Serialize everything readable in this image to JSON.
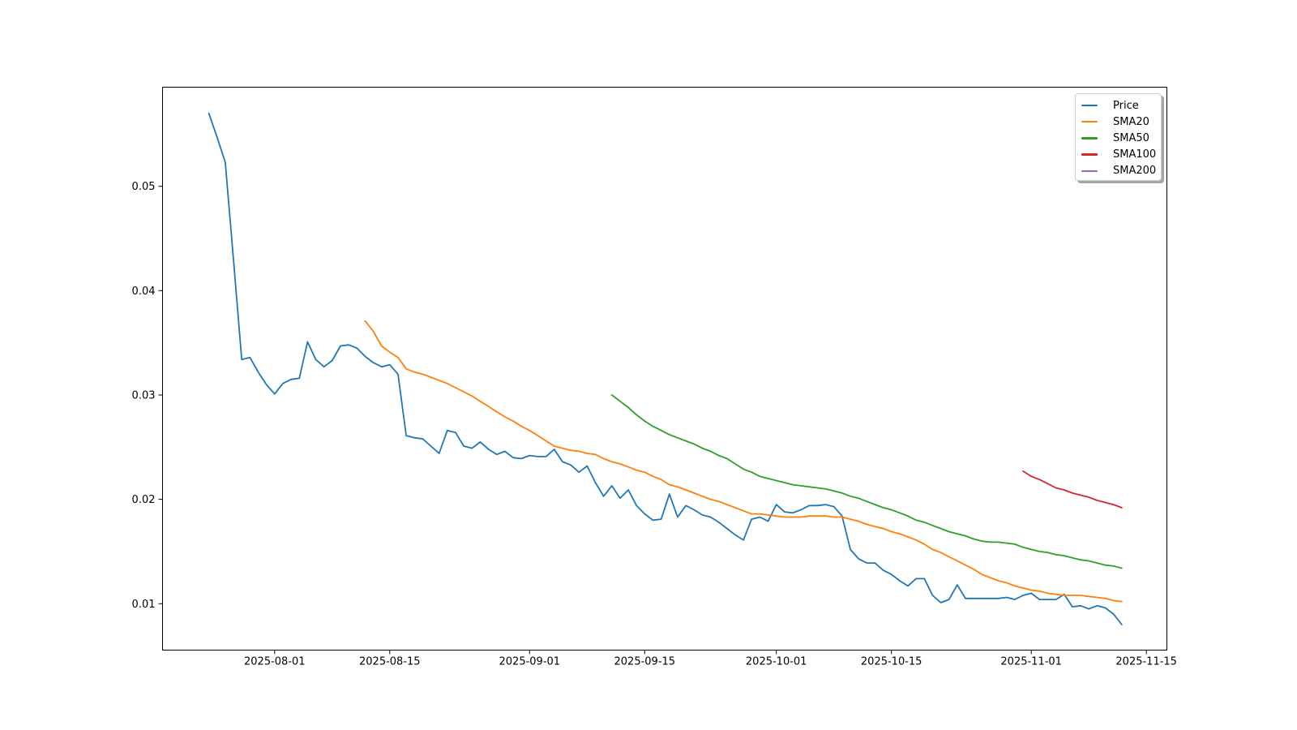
{
  "figure": {
    "background": "#ffffff"
  },
  "chart_data": {
    "type": "line",
    "title": "",
    "xlabel": "",
    "ylabel": "",
    "grid": false,
    "x_axis": {
      "epoch": "2025-07-24",
      "lim_days": [
        -5.63,
        116.49
      ],
      "tick_dates": [
        "2025-08-01",
        "2025-08-15",
        "2025-09-01",
        "2025-09-15",
        "2025-10-01",
        "2025-10-15",
        "2025-11-01",
        "2025-11-15"
      ],
      "tick_labels": [
        "2025-08-01",
        "2025-08-15",
        "2025-09-01",
        "2025-09-15",
        "2025-10-01",
        "2025-10-15",
        "2025-11-01",
        "2025-11-15"
      ]
    },
    "y_axis": {
      "lim": [
        0.00555,
        0.0595
      ],
      "tick_values": [
        0.01,
        0.02,
        0.03,
        0.04,
        0.05
      ],
      "tick_labels": [
        "0.01",
        "0.02",
        "0.03",
        "0.04",
        "0.05"
      ]
    },
    "legend": {
      "position": "upper right",
      "shadow": true,
      "entries": [
        "Price",
        "SMA20",
        "SMA50",
        "SMA100",
        "SMA200"
      ]
    },
    "series": [
      {
        "name": "Price",
        "color": "#1f77b4",
        "start": "2025-07-24",
        "values": [
          0.057,
          0.0547,
          0.0523,
          0.0429,
          0.0334,
          0.0336,
          0.0322,
          0.031,
          0.0301,
          0.0311,
          0.0315,
          0.0316,
          0.0351,
          0.0334,
          0.0327,
          0.0333,
          0.0347,
          0.0348,
          0.0345,
          0.0337,
          0.0331,
          0.0327,
          0.0329,
          0.032,
          0.0261,
          0.0259,
          0.0258,
          0.0251,
          0.0244,
          0.0266,
          0.0264,
          0.0251,
          0.0249,
          0.0255,
          0.0248,
          0.0243,
          0.0246,
          0.024,
          0.0239,
          0.0242,
          0.0241,
          0.0241,
          0.0248,
          0.0236,
          0.0233,
          0.0226,
          0.0232,
          0.0216,
          0.0203,
          0.0213,
          0.0201,
          0.0209,
          0.0194,
          0.0186,
          0.018,
          0.0181,
          0.0205,
          0.0183,
          0.0194,
          0.019,
          0.0185,
          0.0183,
          0.0178,
          0.0172,
          0.0166,
          0.0161,
          0.0181,
          0.0183,
          0.0179,
          0.0195,
          0.0188,
          0.0187,
          0.019,
          0.0194,
          0.0194,
          0.0195,
          0.0193,
          0.0184,
          0.0152,
          0.0143,
          0.0139,
          0.0139,
          0.0132,
          0.0128,
          0.0122,
          0.0117,
          0.0124,
          0.0124,
          0.0108,
          0.0101,
          0.0104,
          0.0118,
          0.0105,
          0.0105,
          0.0105,
          0.0105,
          0.0105,
          0.0106,
          0.0104,
          0.0108,
          0.011,
          0.0104,
          0.0104,
          0.0104,
          0.0109,
          0.0097,
          0.0098,
          0.0095,
          0.0098,
          0.0096,
          0.009,
          0.008
        ]
      },
      {
        "name": "SMA20",
        "color": "#ff7f0e",
        "start": "2025-08-12",
        "values": [
          0.0371,
          0.0361,
          0.0347,
          0.0341,
          0.0336,
          0.0325,
          0.0322,
          0.032,
          0.0317,
          0.0314,
          0.0311,
          0.0307,
          0.0303,
          0.0299,
          0.0294,
          0.0289,
          0.0284,
          0.0279,
          0.0275,
          0.027,
          0.0266,
          0.0261,
          0.0256,
          0.0251,
          0.0249,
          0.0247,
          0.0246,
          0.0244,
          0.0243,
          0.0239,
          0.0236,
          0.0234,
          0.0231,
          0.0228,
          0.0226,
          0.0222,
          0.0219,
          0.0214,
          0.0212,
          0.0209,
          0.0206,
          0.0203,
          0.02,
          0.0198,
          0.0195,
          0.0192,
          0.0189,
          0.0186,
          0.0186,
          0.0185,
          0.0184,
          0.0183,
          0.0183,
          0.0183,
          0.0184,
          0.0184,
          0.0184,
          0.0183,
          0.0183,
          0.0181,
          0.0179,
          0.0176,
          0.0174,
          0.0172,
          0.0169,
          0.0167,
          0.0164,
          0.0161,
          0.0157,
          0.0152,
          0.0149,
          0.0145,
          0.0141,
          0.0137,
          0.0133,
          0.0128,
          0.0125,
          0.0122,
          0.012,
          0.0117,
          0.0115,
          0.0113,
          0.0112,
          0.011,
          0.0109,
          0.0108,
          0.0108,
          0.0108,
          0.0107,
          0.0106,
          0.0105,
          0.0103,
          0.0102
        ]
      },
      {
        "name": "SMA50",
        "color": "#2ca02c",
        "start": "2025-09-11",
        "values": [
          0.03,
          0.0294,
          0.0288,
          0.0281,
          0.0275,
          0.027,
          0.0266,
          0.0262,
          0.0259,
          0.0256,
          0.0253,
          0.0249,
          0.0246,
          0.0242,
          0.0239,
          0.0234,
          0.0229,
          0.0226,
          0.0222,
          0.022,
          0.0218,
          0.0216,
          0.0214,
          0.0213,
          0.0212,
          0.0211,
          0.021,
          0.0208,
          0.0206,
          0.0203,
          0.0201,
          0.0198,
          0.0195,
          0.0192,
          0.019,
          0.0187,
          0.0184,
          0.018,
          0.0178,
          0.0175,
          0.0172,
          0.0169,
          0.0167,
          0.0165,
          0.0162,
          0.016,
          0.0159,
          0.0159,
          0.0158,
          0.0157,
          0.0154,
          0.0152,
          0.015,
          0.0149,
          0.0147,
          0.0146,
          0.0144,
          0.0142,
          0.0141,
          0.0139,
          0.0137,
          0.0136,
          0.0134
        ]
      },
      {
        "name": "SMA100",
        "color": "#d62728",
        "start": "2025-10-31",
        "values": [
          0.0227,
          0.0222,
          0.0219,
          0.0215,
          0.0211,
          0.0209,
          0.0206,
          0.0204,
          0.0202,
          0.0199,
          0.0197,
          0.0195,
          0.0192
        ]
      },
      {
        "name": "SMA200",
        "color": "#9467bd",
        "start": "2025-07-24",
        "values": []
      }
    ]
  }
}
